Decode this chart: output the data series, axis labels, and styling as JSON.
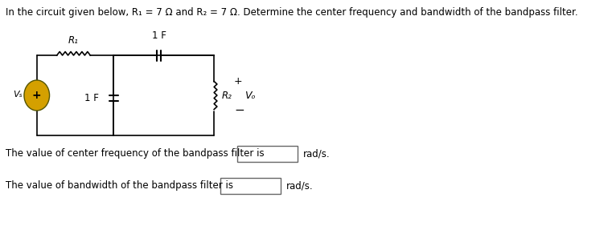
{
  "title_text": "In the circuit given below, R₁ = 7 Ω and R₂ = 7 Ω. Determine the center frequency and bandwidth of the bandpass filter.",
  "label_R1": "R₁",
  "label_R2": "R₂",
  "label_1F_top": "1 F",
  "label_1F_mid": "1 F",
  "label_Vs": "Vₛ",
  "label_Vo": "Vₒ",
  "label_plus": "+",
  "label_minus": "−",
  "text_center_freq": "The value of center frequency of the bandpass filter is",
  "text_bandwidth": "The value of bandwidth of the bandpass filter is",
  "text_rads": "rad/s.",
  "bg_color": "#ffffff",
  "line_color": "#000000",
  "resistor_color": "#000000",
  "source_color": "#d4a000",
  "text_color": "#000000",
  "box_color": "#cccccc"
}
